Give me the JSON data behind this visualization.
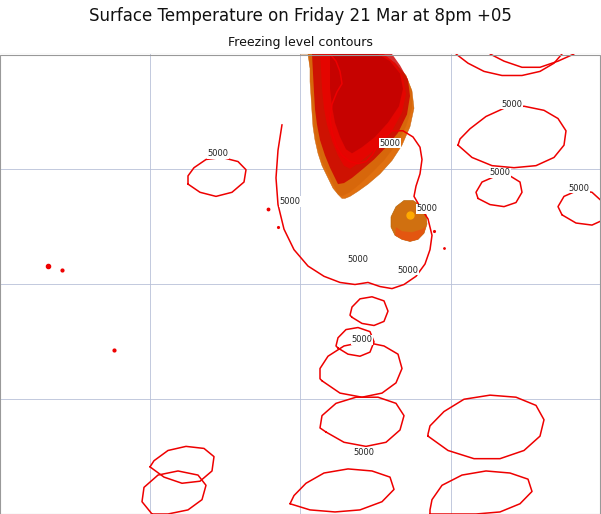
{
  "title": "Surface Temperature on Friday 21 Mar at 8pm +05",
  "subtitle": "Freezing level contours",
  "title_fontsize": 12,
  "subtitle_fontsize": 9,
  "map_bg": "#c8cfe8",
  "grid_color": "#b8c0d8",
  "contour_color": "#ee0000",
  "title_color": "#111111",
  "white_bg": "#ffffff",
  "border_color": "#999999"
}
